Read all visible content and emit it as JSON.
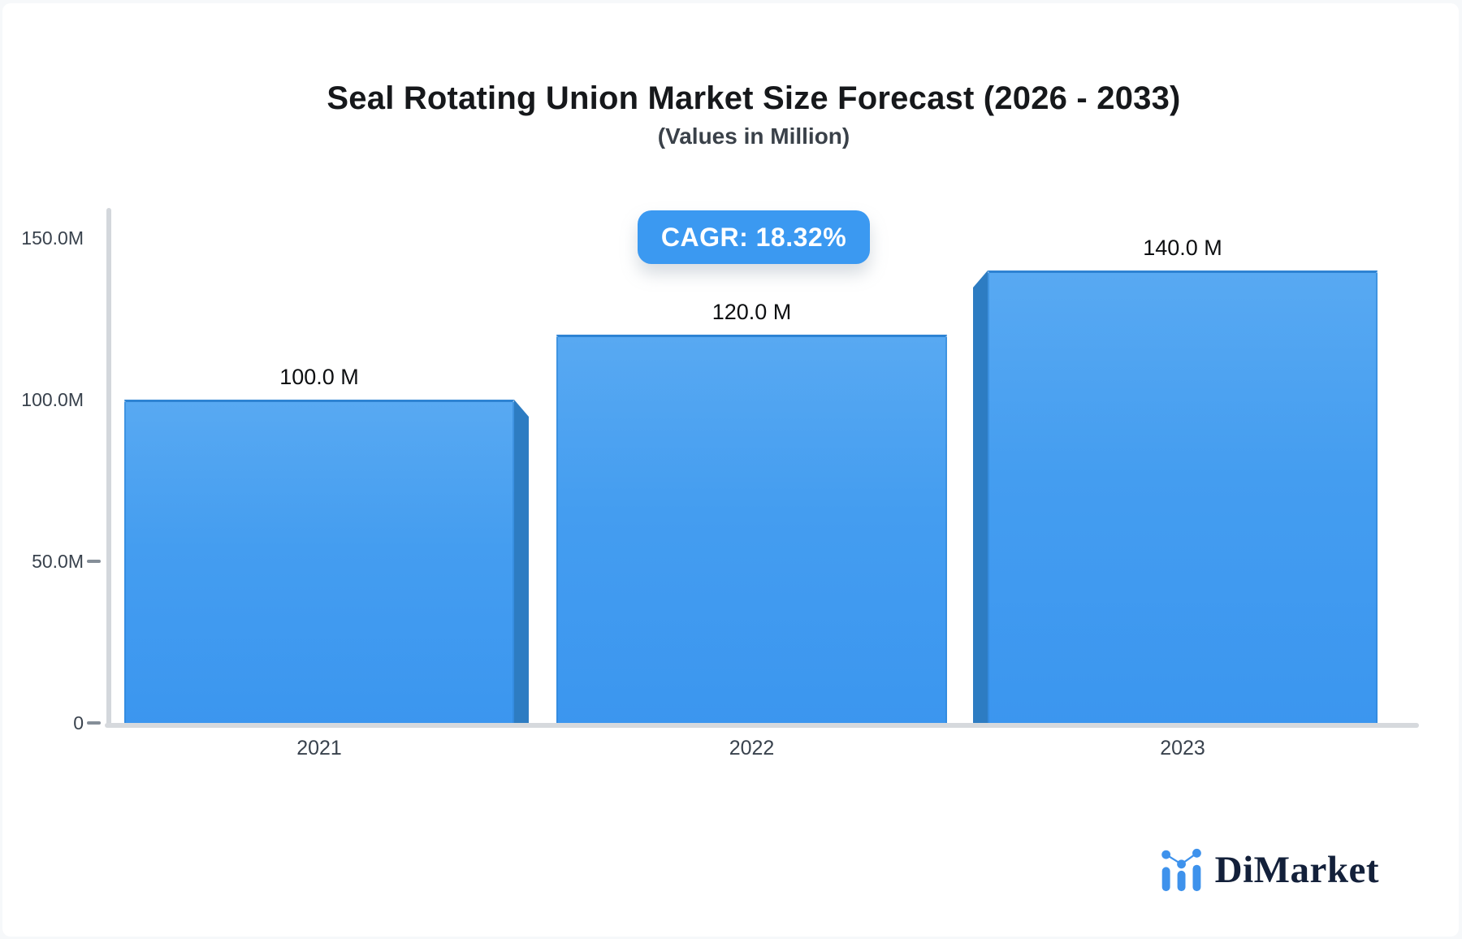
{
  "title": "Seal Rotating Union Market Size Forecast (2026 - 2033)",
  "subtitle": "(Values in Million)",
  "cagr_badge": "CAGR: 18.32%",
  "brand": {
    "name": "DiMarket"
  },
  "colors": {
    "bar_fill_top": "#58a9f2",
    "bar_fill_bottom": "#3b96ef",
    "bar_edge": "#2e83d3",
    "bar_bevel": "#2d7cc2",
    "badge_bg": "#3b99f1",
    "axis_line": "#d4d8dd",
    "tick_text": "#39424d",
    "title_text": "#16181b",
    "logo_blue": "#3e92ec",
    "logo_navy": "#13203a"
  },
  "chart_data": {
    "type": "bar",
    "title": "Seal Rotating Union Market Size Forecast (2026 - 2033)",
    "subtitle": "(Values in Million)",
    "cagr": "18.32%",
    "categories": [
      "2021",
      "2022",
      "2023"
    ],
    "values": [
      100.0,
      120.0,
      140.0
    ],
    "bar_labels": [
      "100.0 M",
      "120.0 M",
      "140.0 M"
    ],
    "xlabel": "",
    "ylabel": "",
    "ylim": [
      0,
      150
    ],
    "yticks": [
      {
        "value": 150,
        "label": "150.0M",
        "dash": false
      },
      {
        "value": 100,
        "label": "100.0M",
        "dash": false
      },
      {
        "value": 50,
        "label": "50.0M",
        "dash": true
      },
      {
        "value": 0,
        "label": "0",
        "dash": true
      }
    ],
    "grid": false,
    "legend": false,
    "bar_color": "#3b96ef"
  }
}
